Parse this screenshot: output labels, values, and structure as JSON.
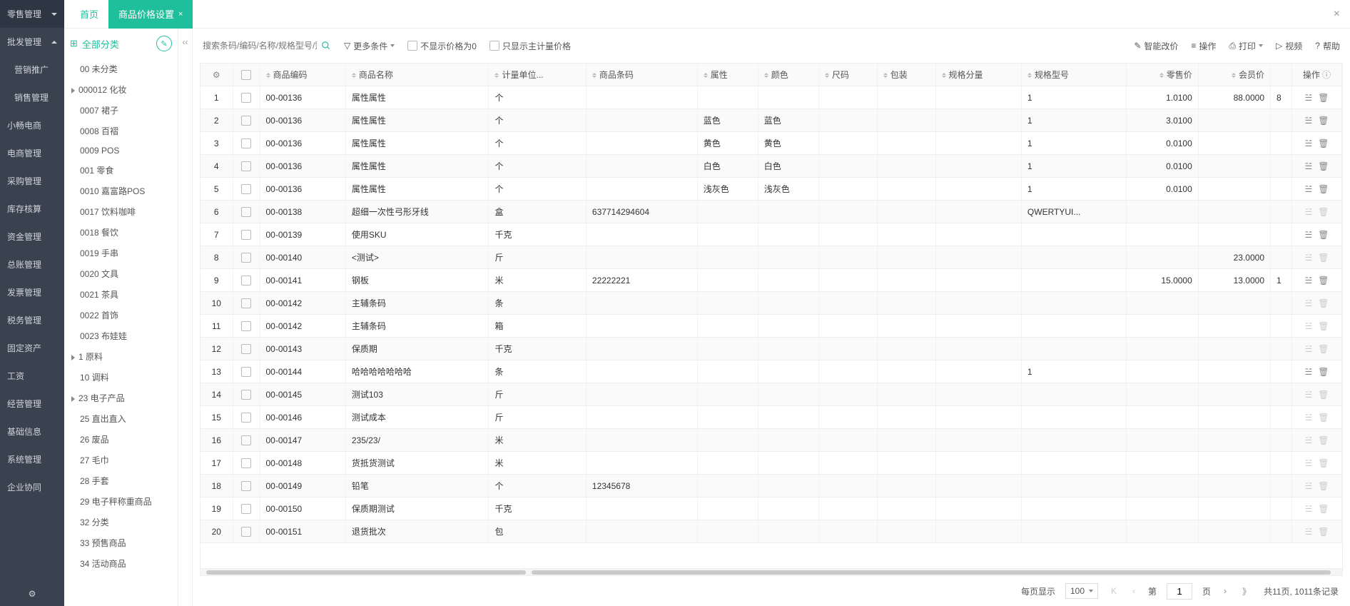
{
  "sidebar": {
    "items": [
      {
        "label": "零售管理",
        "caret": "down",
        "sub": false
      },
      {
        "label": "批发管理",
        "caret": "up",
        "sub": false
      },
      {
        "label": "营销推广",
        "sub": true
      },
      {
        "label": "销售管理",
        "sub": true
      },
      {
        "label": "小畅电商",
        "sub": false
      },
      {
        "label": "电商管理",
        "sub": false
      },
      {
        "label": "采购管理",
        "sub": false
      },
      {
        "label": "库存核算",
        "sub": false
      },
      {
        "label": "资金管理",
        "sub": false
      },
      {
        "label": "总账管理",
        "sub": false
      },
      {
        "label": "发票管理",
        "sub": false
      },
      {
        "label": "税务管理",
        "sub": false
      },
      {
        "label": "固定资产",
        "sub": false
      },
      {
        "label": "工资",
        "sub": false
      },
      {
        "label": "经营管理",
        "sub": false
      },
      {
        "label": "基础信息",
        "sub": false
      },
      {
        "label": "系统管理",
        "sub": false
      },
      {
        "label": "企业协同",
        "sub": false
      }
    ]
  },
  "tabs": {
    "home": "首页",
    "active": "商品价格设置"
  },
  "tree": {
    "header": "全部分类",
    "items": [
      {
        "label": "00 未分类"
      },
      {
        "label": "000012 化妆",
        "children": true
      },
      {
        "label": "0007 裙子"
      },
      {
        "label": "0008 百褶"
      },
      {
        "label": "0009 POS"
      },
      {
        "label": "001 零食"
      },
      {
        "label": "0010 嘉富路POS"
      },
      {
        "label": "0017 饮料咖啡"
      },
      {
        "label": "0018 餐饮"
      },
      {
        "label": "0019 手串"
      },
      {
        "label": "0020 文具"
      },
      {
        "label": "0021 茶具"
      },
      {
        "label": "0022 首饰"
      },
      {
        "label": "0023 布娃娃"
      },
      {
        "label": "1 原料",
        "children": true
      },
      {
        "label": "10 调料"
      },
      {
        "label": "23 电子产品",
        "children": true
      },
      {
        "label": "25 直出直入"
      },
      {
        "label": "26 废品"
      },
      {
        "label": "27 毛巾"
      },
      {
        "label": "28 手套"
      },
      {
        "label": "29 电子秤称重商品"
      },
      {
        "label": "32 分类"
      },
      {
        "label": "33 预售商品"
      },
      {
        "label": "34 活动商品"
      }
    ]
  },
  "toolbar": {
    "search_placeholder": "搜索条码/编码/名称/规格型号/别名",
    "more": "更多条件",
    "hide_zero": "不显示价格为0",
    "main_unit": "只显示主计量价格",
    "smart": "智能改价",
    "operate": "操作",
    "print": "打印",
    "video": "视频",
    "help": "帮助"
  },
  "table": {
    "columns": [
      "商品编码",
      "商品名称",
      "计量单位...",
      "商品条码",
      "属性",
      "颜色",
      "尺码",
      "包装",
      "规格分量",
      "规格型号",
      "零售价",
      "会员价",
      "操作"
    ],
    "rows": [
      {
        "idx": "1",
        "code": "00-00136",
        "name": "属性属性",
        "unit": "个",
        "barcode": "",
        "attr": "",
        "color": "",
        "size": "",
        "pack": "",
        "spec_qty": "",
        "spec": "1",
        "retail": "1.0100",
        "member": "88.0000",
        "ext": "8",
        "op": "active"
      },
      {
        "idx": "2",
        "code": "00-00136",
        "name": "属性属性",
        "unit": "个",
        "barcode": "",
        "attr": "蓝色",
        "color": "蓝色",
        "size": "",
        "pack": "",
        "spec_qty": "",
        "spec": "1",
        "retail": "3.0100",
        "member": "",
        "ext": "",
        "op": "active"
      },
      {
        "idx": "3",
        "code": "00-00136",
        "name": "属性属性",
        "unit": "个",
        "barcode": "",
        "attr": "黄色",
        "color": "黄色",
        "size": "",
        "pack": "",
        "spec_qty": "",
        "spec": "1",
        "retail": "0.0100",
        "member": "",
        "ext": "",
        "op": "active"
      },
      {
        "idx": "4",
        "code": "00-00136",
        "name": "属性属性",
        "unit": "个",
        "barcode": "",
        "attr": "白色",
        "color": "白色",
        "size": "",
        "pack": "",
        "spec_qty": "",
        "spec": "1",
        "retail": "0.0100",
        "member": "",
        "ext": "",
        "op": "active"
      },
      {
        "idx": "5",
        "code": "00-00136",
        "name": "属性属性",
        "unit": "个",
        "barcode": "",
        "attr": "浅灰色",
        "color": "浅灰色",
        "size": "",
        "pack": "",
        "spec_qty": "",
        "spec": "1",
        "retail": "0.0100",
        "member": "",
        "ext": "",
        "op": "active"
      },
      {
        "idx": "6",
        "code": "00-00138",
        "name": "超细一次性弓形牙线",
        "unit": "盒",
        "barcode": "637714294604",
        "attr": "",
        "color": "",
        "size": "",
        "pack": "",
        "spec_qty": "",
        "spec": "QWERTYUI...",
        "retail": "",
        "member": "",
        "ext": "",
        "op": "disabled"
      },
      {
        "idx": "7",
        "code": "00-00139",
        "name": "使用SKU",
        "unit": "千克",
        "barcode": "",
        "attr": "",
        "color": "",
        "size": "",
        "pack": "",
        "spec_qty": "",
        "spec": "",
        "retail": "",
        "member": "",
        "ext": "",
        "op": "active"
      },
      {
        "idx": "8",
        "code": "00-00140",
        "name": "<测试>",
        "unit": "斤",
        "barcode": "",
        "attr": "",
        "color": "",
        "size": "",
        "pack": "",
        "spec_qty": "",
        "spec": "",
        "retail": "",
        "member": "23.0000",
        "ext": "",
        "op": "disabled"
      },
      {
        "idx": "9",
        "code": "00-00141",
        "name": "钢板",
        "unit": "米",
        "barcode": "22222221",
        "attr": "",
        "color": "",
        "size": "",
        "pack": "",
        "spec_qty": "",
        "spec": "",
        "retail": "15.0000",
        "member": "13.0000",
        "ext": "1",
        "op": "active"
      },
      {
        "idx": "10",
        "code": "00-00142",
        "name": "主辅条码",
        "unit": "条",
        "barcode": "",
        "attr": "",
        "color": "",
        "size": "",
        "pack": "",
        "spec_qty": "",
        "spec": "",
        "retail": "",
        "member": "",
        "ext": "",
        "op": "disabled"
      },
      {
        "idx": "11",
        "code": "00-00142",
        "name": "主辅条码",
        "unit": "箱",
        "barcode": "",
        "attr": "",
        "color": "",
        "size": "",
        "pack": "",
        "spec_qty": "",
        "spec": "",
        "retail": "",
        "member": "",
        "ext": "",
        "op": "disabled"
      },
      {
        "idx": "12",
        "code": "00-00143",
        "name": "保质期",
        "unit": "千克",
        "barcode": "",
        "attr": "",
        "color": "",
        "size": "",
        "pack": "",
        "spec_qty": "",
        "spec": "",
        "retail": "",
        "member": "",
        "ext": "",
        "op": "disabled"
      },
      {
        "idx": "13",
        "code": "00-00144",
        "name": "哈哈哈哈哈哈哈",
        "unit": "条",
        "barcode": "",
        "attr": "",
        "color": "",
        "size": "",
        "pack": "",
        "spec_qty": "",
        "spec": "1",
        "retail": "",
        "member": "",
        "ext": "",
        "op": "active"
      },
      {
        "idx": "14",
        "code": "00-00145",
        "name": "测试103",
        "unit": "斤",
        "barcode": "",
        "attr": "",
        "color": "",
        "size": "",
        "pack": "",
        "spec_qty": "",
        "spec": "",
        "retail": "",
        "member": "",
        "ext": "",
        "op": "disabled"
      },
      {
        "idx": "15",
        "code": "00-00146",
        "name": "测试成本",
        "unit": "斤",
        "barcode": "",
        "attr": "",
        "color": "",
        "size": "",
        "pack": "",
        "spec_qty": "",
        "spec": "",
        "retail": "",
        "member": "",
        "ext": "",
        "op": "disabled"
      },
      {
        "idx": "16",
        "code": "00-00147",
        "name": "235/23/",
        "unit": "米",
        "barcode": "",
        "attr": "",
        "color": "",
        "size": "",
        "pack": "",
        "spec_qty": "",
        "spec": "",
        "retail": "",
        "member": "",
        "ext": "",
        "op": "disabled"
      },
      {
        "idx": "17",
        "code": "00-00148",
        "name": "货抵货测试",
        "unit": "米",
        "barcode": "",
        "attr": "",
        "color": "",
        "size": "",
        "pack": "",
        "spec_qty": "",
        "spec": "",
        "retail": "",
        "member": "",
        "ext": "",
        "op": "disabled"
      },
      {
        "idx": "18",
        "code": "00-00149",
        "name": "铅笔",
        "unit": "个",
        "barcode": "12345678",
        "attr": "",
        "color": "",
        "size": "",
        "pack": "",
        "spec_qty": "",
        "spec": "",
        "retail": "",
        "member": "",
        "ext": "",
        "op": "disabled"
      },
      {
        "idx": "19",
        "code": "00-00150",
        "name": "保质期测试",
        "unit": "千克",
        "barcode": "",
        "attr": "",
        "color": "",
        "size": "",
        "pack": "",
        "spec_qty": "",
        "spec": "",
        "retail": "",
        "member": "",
        "ext": "",
        "op": "disabled"
      },
      {
        "idx": "20",
        "code": "00-00151",
        "name": "退货批次",
        "unit": "包",
        "barcode": "",
        "attr": "",
        "color": "",
        "size": "",
        "pack": "",
        "spec_qty": "",
        "spec": "",
        "retail": "",
        "member": "",
        "ext": "",
        "op": "disabled"
      }
    ]
  },
  "pagination": {
    "per_page_label": "每页显示",
    "per_page_value": "100",
    "page_prefix": "第",
    "page_value": "1",
    "page_suffix": "页",
    "summary": "共11页, 1011条记录"
  },
  "colors": {
    "accent": "#1fbf9c",
    "sidebar_bg": "#3a4250"
  }
}
